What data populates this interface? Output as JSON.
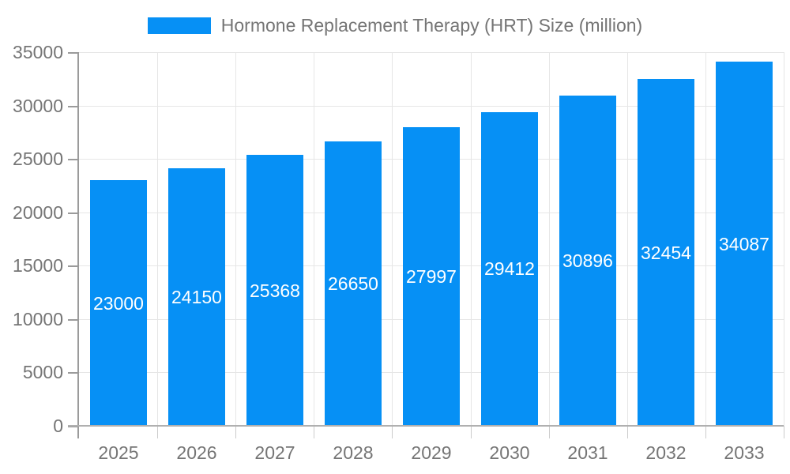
{
  "legend": {
    "label": "Hormone Replacement Therapy (HRT) Size (million)"
  },
  "chart_data": {
    "type": "bar",
    "title": "",
    "xlabel": "",
    "ylabel": "",
    "categories": [
      "2025",
      "2026",
      "2027",
      "2028",
      "2029",
      "2030",
      "2031",
      "2032",
      "2033"
    ],
    "series": [
      {
        "name": "Hormone Replacement Therapy (HRT) Size (million)",
        "values": [
          23000,
          24150,
          25368,
          26650,
          27997,
          29412,
          30896,
          32454,
          34087
        ]
      }
    ],
    "bar_value_labels": [
      "23000",
      "24150",
      "25368",
      "26650",
      "27997",
      "29412",
      "30896",
      "32454",
      "34087"
    ],
    "ylim": [
      0,
      35000
    ],
    "ytick_step": 5000,
    "ytick_labels": [
      "0",
      "5000",
      "10000",
      "15000",
      "20000",
      "25000",
      "30000",
      "35000"
    ],
    "grid": true,
    "legend_position": "top"
  },
  "colors": {
    "bar": "#0690f5",
    "grid_line": "#e6e6e6",
    "axis_line": "#9b9b9b",
    "baseline": "#b0b0b0",
    "minor_tick": "#cccccc",
    "tick_label": "#757575",
    "bar_label": "#ffffff",
    "background": "#ffffff"
  }
}
